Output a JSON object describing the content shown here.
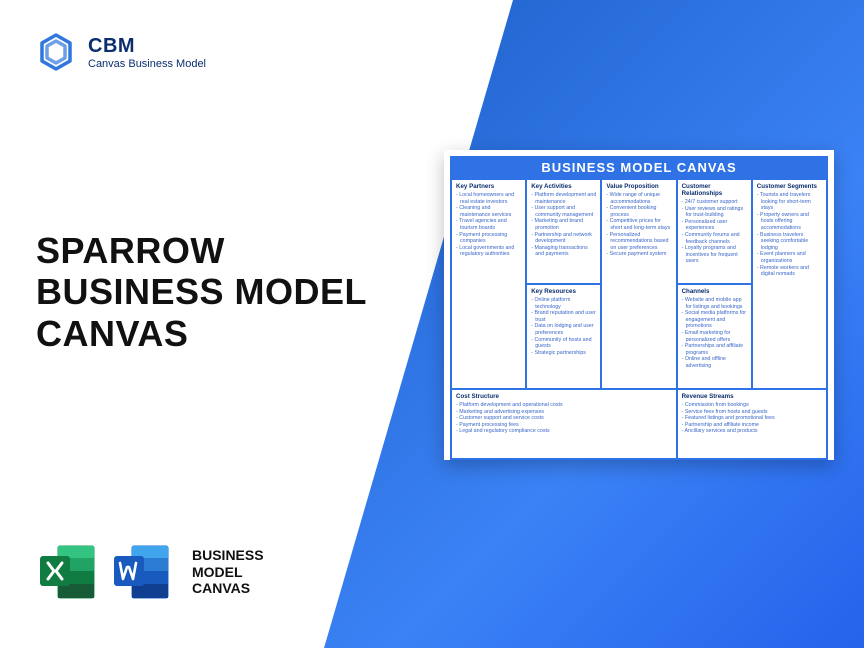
{
  "brand": {
    "name": "CBM",
    "tagline": "Canvas Business Model",
    "logo_color": "#0b5ed7"
  },
  "main_title": {
    "line1": "SPARROW",
    "line2": "BUSINESS MODEL",
    "line3": "CANVAS",
    "color": "#111111",
    "fontsize": 36
  },
  "file_icons": {
    "excel_color": "#1d9a56",
    "word_color": "#1d6fd1",
    "label_l1": "BUSINESS",
    "label_l2": "MODEL",
    "label_l3": "CANVAS"
  },
  "background": {
    "gradient_from": "#1c5fc7",
    "gradient_to": "#2563eb"
  },
  "canvas": {
    "header": "BUSINESS MODEL CANVAS",
    "header_bg": "#2f72e6",
    "border_color": "#2f72e6",
    "text_color": "#3966c8",
    "heading_color": "#0b2e6f",
    "sections": {
      "key_partners": {
        "title": "Key Partners",
        "items": [
          "Local homeowners and real estate investors",
          "Cleaning and maintenance services",
          "Travel agencies and tourism boards",
          "Payment processing companies",
          "Local governments and regulatory authorities"
        ]
      },
      "key_activities": {
        "title": "Key Activities",
        "items": [
          "Platform development and maintenance",
          "User support and community management",
          "Marketing and brand promotion",
          "Partnership and network development",
          "Managing transactions and payments"
        ]
      },
      "key_resources": {
        "title": "Key Resources",
        "items": [
          "Online platform technology",
          "Brand reputation and user trust",
          "Data on lodging and user preferences",
          "Community of hosts and guests",
          "Strategic partnerships"
        ]
      },
      "value_proposition": {
        "title": "Value Proposition",
        "items": [
          "Wide range of unique accommodations",
          "Convenient booking process",
          "Competitive prices for short and long-term stays",
          "Personalized recommendations based on user preferences",
          "Secure payment system"
        ]
      },
      "customer_relationships": {
        "title": "Customer Relationships",
        "items": [
          "24/7 customer support",
          "User reviews and ratings for trust-building",
          "Personalized user experiences",
          "Community forums and feedback channels",
          "Loyalty programs and incentives for frequent users"
        ]
      },
      "channels": {
        "title": "Channels",
        "items": [
          "Website and mobile app for listings and bookings",
          "Social media platforms for engagement and promotions",
          "Email marketing for personalized offers",
          "Partnerships and affiliate programs",
          "Online and offline advertising"
        ]
      },
      "customer_segments": {
        "title": "Customer Segments",
        "items": [
          "Tourists and travelers looking for short-term stays",
          "Property owners and hosts offering accommodations",
          "Business travelers seeking comfortable lodging",
          "Event planners and organizations",
          "Remote workers and digital nomads"
        ]
      },
      "cost_structure": {
        "title": "Cost Structure",
        "items": [
          "Platform development and operational costs",
          "Marketing and advertising expenses",
          "Customer support and service costs",
          "Payment processing fees",
          "Legal and regulatory compliance costs"
        ]
      },
      "revenue_streams": {
        "title": "Revenue Streams",
        "items": [
          "Commission from bookings",
          "Service fees from hosts and guests",
          "Featured listings and promotional fees",
          "Partnership and affiliate income",
          "Ancillary services and products"
        ]
      }
    }
  }
}
